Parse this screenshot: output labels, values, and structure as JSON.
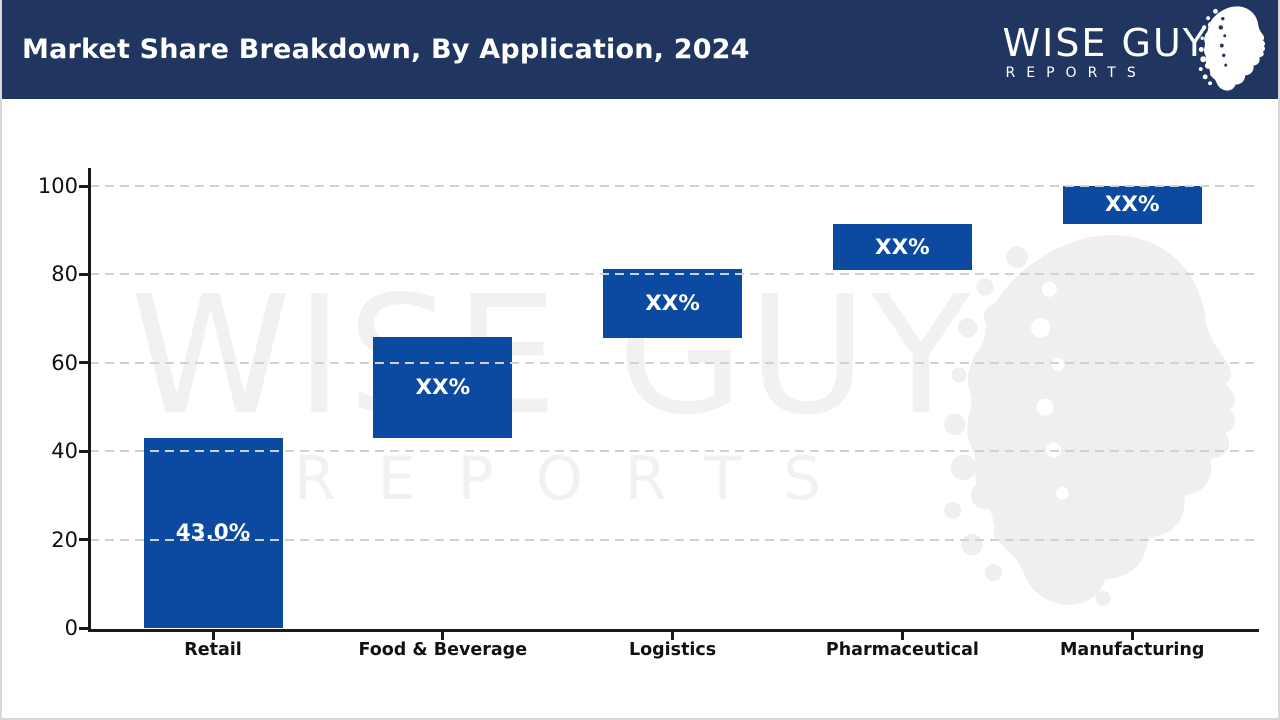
{
  "header": {
    "title": "Market Share Breakdown, By Application, 2024",
    "logo": {
      "line1": "WISE GUY",
      "line2": "REPORTS"
    }
  },
  "watermark": {
    "line1": "WISE GUY",
    "line2": "REPORTS"
  },
  "chart_data": {
    "type": "bar",
    "subtype": "waterfall",
    "title": "Market Share Breakdown, By Application, 2024",
    "xlabel": "",
    "ylabel": "",
    "unit": "%",
    "ylim": [
      0,
      104
    ],
    "yticks": [
      0,
      20,
      40,
      60,
      80,
      100
    ],
    "grid": "horizontal-dashed-over-bars",
    "legend": "none",
    "categories": [
      "Retail",
      "Food & Beverage",
      "Logistics",
      "Pharmaceutical",
      "Manufacturing"
    ],
    "series": [
      {
        "name": "Market Share",
        "segments": [
          {
            "category": "Retail",
            "start": 0.0,
            "end": 43.0,
            "value": 43.0,
            "label": "43.0%"
          },
          {
            "category": "Food & Beverage",
            "start": 43.0,
            "end": 65.8,
            "value": 22.8,
            "label": "XX%"
          },
          {
            "category": "Logistics",
            "start": 65.5,
            "end": 81.2,
            "value": 15.7,
            "label": "XX%"
          },
          {
            "category": "Pharmaceutical",
            "start": 81.0,
            "end": 91.3,
            "value": 10.3,
            "label": "XX%"
          },
          {
            "category": "Manufacturing",
            "start": 91.5,
            "end": 100.0,
            "value": 8.5,
            "label": "XX%"
          }
        ]
      }
    ],
    "colors": {
      "bar": "#0c4aa2",
      "bar_label": "#ffffff",
      "grid": "#d2d2d2",
      "axis": "#1a1a1a",
      "tick_label": "#111111",
      "header_bg": "#203560",
      "watermark": "#f1f1f4"
    }
  }
}
